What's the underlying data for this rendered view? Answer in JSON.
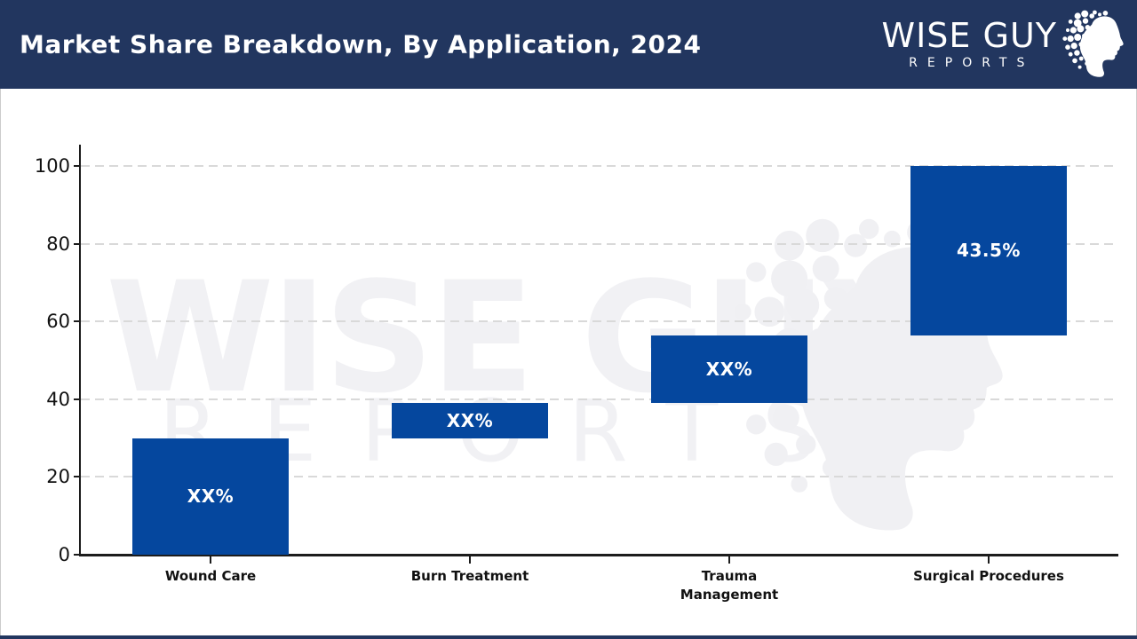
{
  "header": {
    "title": "Market Share Breakdown, By Application, 2024",
    "logo": {
      "wordmark": "WISE GUY",
      "subtitle": "REPORTS"
    }
  },
  "watermark": {
    "wordmark": "WISE GUY",
    "subtitle": "REPORTS"
  },
  "chart_data": {
    "type": "bar",
    "subtype": "waterfall",
    "title": "Market Share Breakdown, By Application, 2024",
    "categories": [
      "Wound Care",
      "Burn Treatment",
      "Trauma Management",
      "Surgical Procedures"
    ],
    "series": [
      {
        "name": "Market Share (%)",
        "segments": [
          {
            "category": "Wound Care",
            "label": "XX%",
            "start": 0,
            "end": 30
          },
          {
            "category": "Burn Treatment",
            "label": "XX%",
            "start": 30,
            "end": 39
          },
          {
            "category": "Trauma Management",
            "label": "XX%",
            "start": 39,
            "end": 56.5
          },
          {
            "category": "Surgical Procedures",
            "label": "43.5%",
            "start": 56.5,
            "end": 100
          }
        ]
      }
    ],
    "yticks": [
      0,
      20,
      40,
      60,
      80,
      100
    ],
    "ylim": [
      0,
      105
    ],
    "grid": "horizontal-dashed",
    "legend": "none",
    "bar_color": "#05479E",
    "bar_label_color": "#FFFFFF"
  },
  "colors": {
    "header_bg": "#22365F",
    "footer_bg": "#22365F",
    "bar": "#05479E",
    "gridline": "#D9D9D9",
    "axis": "#1C1C1C",
    "watermark": "#F0F0F3",
    "page_border": "#CCCCCC"
  }
}
